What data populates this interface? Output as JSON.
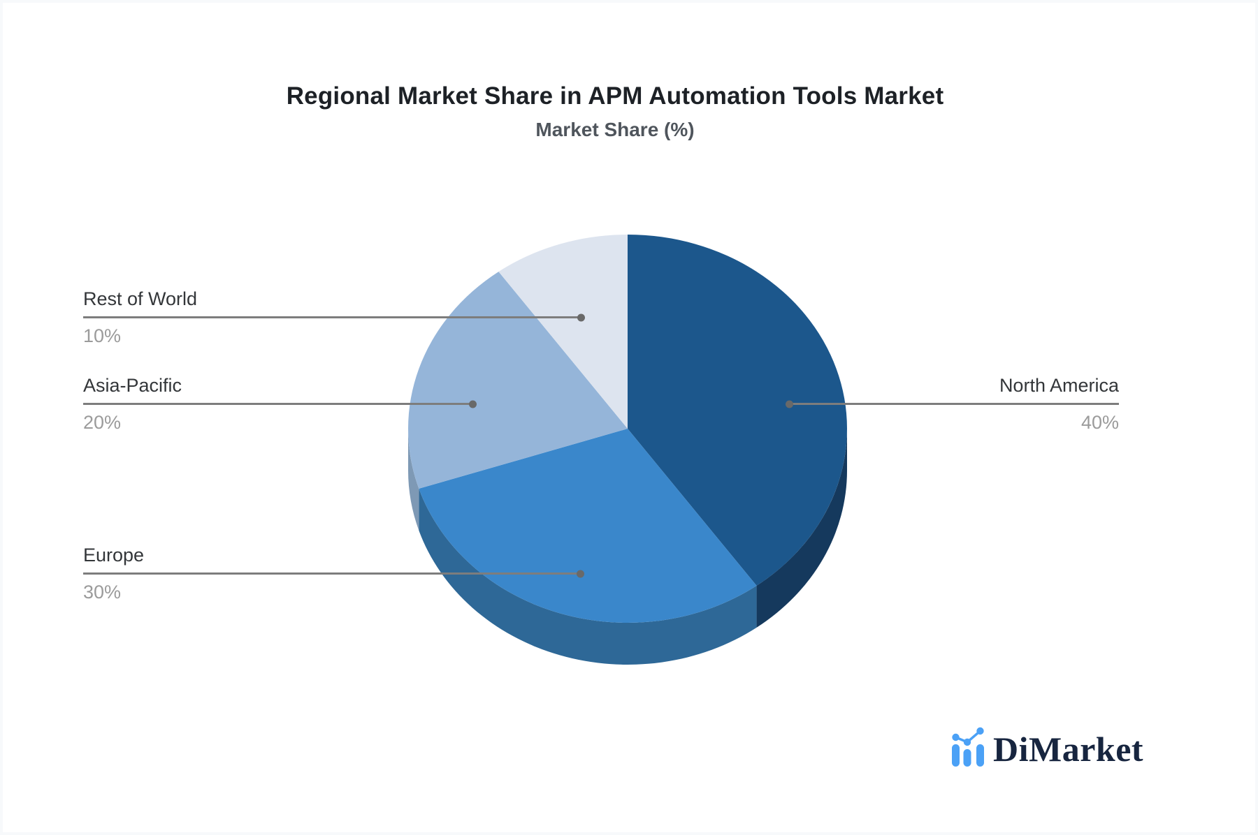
{
  "header": {
    "title": "Regional Market Share in APM Automation Tools Market",
    "subtitle": "Market Share (%)"
  },
  "chart_data": {
    "type": "pie",
    "title": "Regional Market Share in APM Automation Tools Market",
    "subtitle": "Market Share (%)",
    "unit": "%",
    "categories": [
      "North America",
      "Europe",
      "Asia-Pacific",
      "Rest of World"
    ],
    "values": [
      40,
      30,
      20,
      10
    ],
    "start_angle_deg": 0,
    "direction": "clockwise",
    "legend_position": "callout-labels",
    "effect": "3d-depth",
    "slices": [
      {
        "label": "North America",
        "value": 40,
        "display": "40%",
        "color": "#1C578C",
        "side_color": "#15395D"
      },
      {
        "label": "Europe",
        "value": 30,
        "display": "30%",
        "color": "#3A87CB",
        "side_color": "#2E6897"
      },
      {
        "label": "Asia-Pacific",
        "value": 20,
        "display": "20%",
        "color": "#95B5D9",
        "side_color": "#7E99B5"
      },
      {
        "label": "Rest of World",
        "value": 10,
        "display": "10%",
        "color": "#DDE4EF",
        "side_color": "#C9D2E0"
      }
    ]
  },
  "callouts": [
    {
      "label": "Rest of World",
      "value": "10%"
    },
    {
      "label": "Asia-Pacific",
      "value": "20%"
    },
    {
      "label": "Europe",
      "value": "30%"
    },
    {
      "label": "North America",
      "value": "40%"
    }
  ],
  "branding": {
    "logo_text": "DiMarket",
    "logo_text_color": "#17253F",
    "logo_accent_color": "#4BA1F6"
  },
  "colors": {
    "leader_line": "#7D7D7D",
    "leader_dot": "#696969",
    "label_text": "#333639",
    "value_text": "#9B9B9B",
    "title_text": "#1D2126",
    "subtitle_text": "#4F555C",
    "background": "#FFFFFF",
    "frame": "#F7F9FB"
  }
}
